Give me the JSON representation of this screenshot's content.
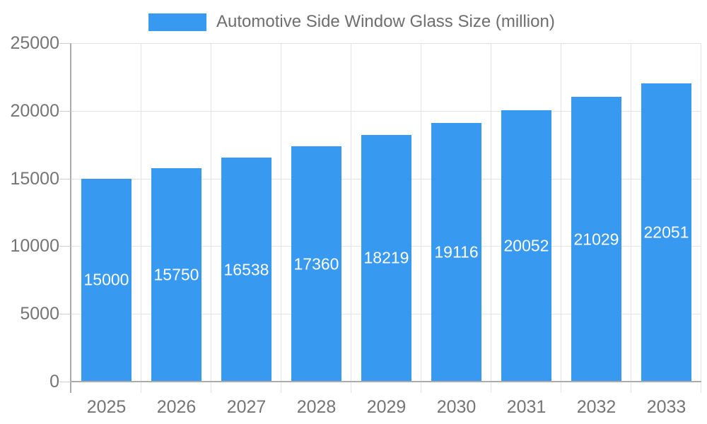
{
  "chart_data": {
    "type": "bar",
    "title": "Automotive Side Window Glass Size (million)",
    "legend_label": "Automotive Side Window Glass Size (million)",
    "legend_position": "top",
    "categories": [
      "2025",
      "2026",
      "2027",
      "2028",
      "2029",
      "2030",
      "2031",
      "2032",
      "2033"
    ],
    "series": [
      {
        "name": "Automotive Side Window Glass Size (million)",
        "values": [
          15000,
          15750,
          16538,
          17360,
          18219,
          19116,
          20052,
          21029,
          22051
        ]
      }
    ],
    "bar_value_labels": [
      "15000",
      "15750",
      "16538",
      "17360",
      "18219",
      "19116",
      "20052",
      "21029",
      "22051"
    ],
    "xlabel": "",
    "ylabel": "",
    "ylim": [
      0,
      25000
    ],
    "yticks": [
      0,
      5000,
      10000,
      15000,
      20000,
      25000
    ],
    "grid": true
  },
  "style": {
    "bar_color": "#3899f0",
    "value_label_color": "#ffffff",
    "axis_text_color": "#757575",
    "legend_text_color": "#6e6e6e",
    "grid_color": "#e3e3e3",
    "axis_line_color": "#ababab",
    "tick_color": "#cccccc"
  }
}
